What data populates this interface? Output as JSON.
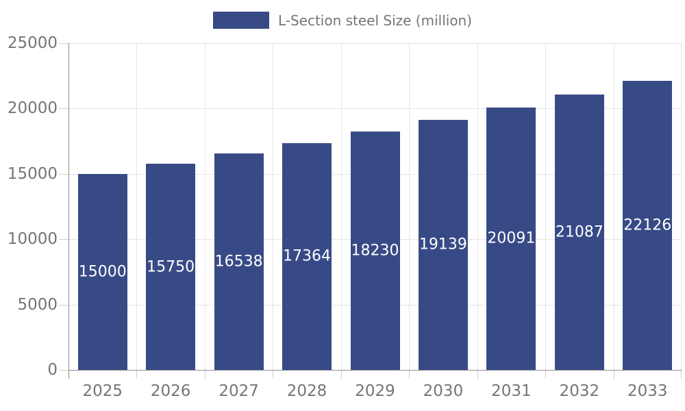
{
  "legend": {
    "label": "L-Section steel Size (million)"
  },
  "colors": {
    "bar": "#384a86",
    "grid": "#e4e4e4",
    "axis": "#8f8f8f",
    "tick": "#cfcfcf",
    "text": "#757575",
    "value_label": "#ffffff",
    "background": "#ffffff"
  },
  "chart_data": {
    "type": "bar",
    "title": "",
    "xlabel": "",
    "ylabel": "",
    "categories": [
      "2025",
      "2026",
      "2027",
      "2028",
      "2029",
      "2030",
      "2031",
      "2032",
      "2033"
    ],
    "values": [
      15000,
      15750,
      16538,
      17364,
      18230,
      19139,
      20091,
      21087,
      22126
    ],
    "value_labels_shown": [
      15000,
      15750,
      16538,
      17364,
      18230,
      19139,
      20091,
      21087,
      22126
    ],
    "legend": [
      "L-Section steel Size (million)"
    ],
    "legend_position": "top-center",
    "ylim": [
      0,
      25000
    ],
    "yticks": [
      0,
      5000,
      10000,
      15000,
      20000,
      25000
    ],
    "grid": true,
    "value_label_placement": "inside-middle"
  }
}
